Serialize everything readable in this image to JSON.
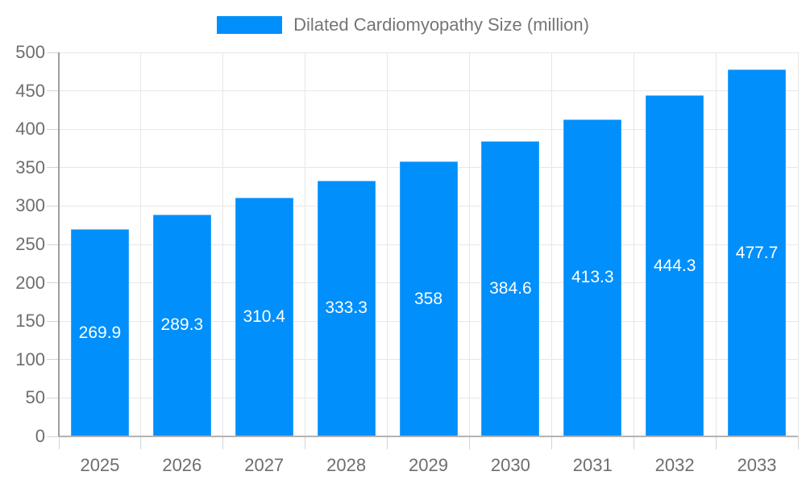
{
  "chart_data": {
    "type": "bar",
    "title": "",
    "series_name": "Dilated Cardiomyopathy Size (million)",
    "categories": [
      "2025",
      "2026",
      "2027",
      "2028",
      "2029",
      "2030",
      "2031",
      "2032",
      "2033"
    ],
    "values": [
      269.9,
      289.3,
      310.4,
      333.3,
      358,
      384.6,
      413.3,
      444.3,
      477.7
    ],
    "value_labels": [
      "269.9",
      "289.3",
      "310.4",
      "333.3",
      "358",
      "384.6",
      "413.3",
      "444.3",
      "477.7"
    ],
    "ylim": [
      0,
      500
    ],
    "ytick_step": 50,
    "ytick_labels": [
      "0",
      "50",
      "100",
      "150",
      "200",
      "250",
      "300",
      "350",
      "400",
      "450",
      "500"
    ],
    "grid": true,
    "legend_position": "top-center",
    "colors": {
      "bar": "#008FFB",
      "grid": "#e7e7e7",
      "y_axis_line": "#9e9e9e",
      "x_axis_line": "#b3b3b3",
      "tick": "#d4d4d4",
      "axis_label": "#6e6e6e",
      "legend_text": "#757575",
      "value_label": "#ffffff"
    }
  }
}
